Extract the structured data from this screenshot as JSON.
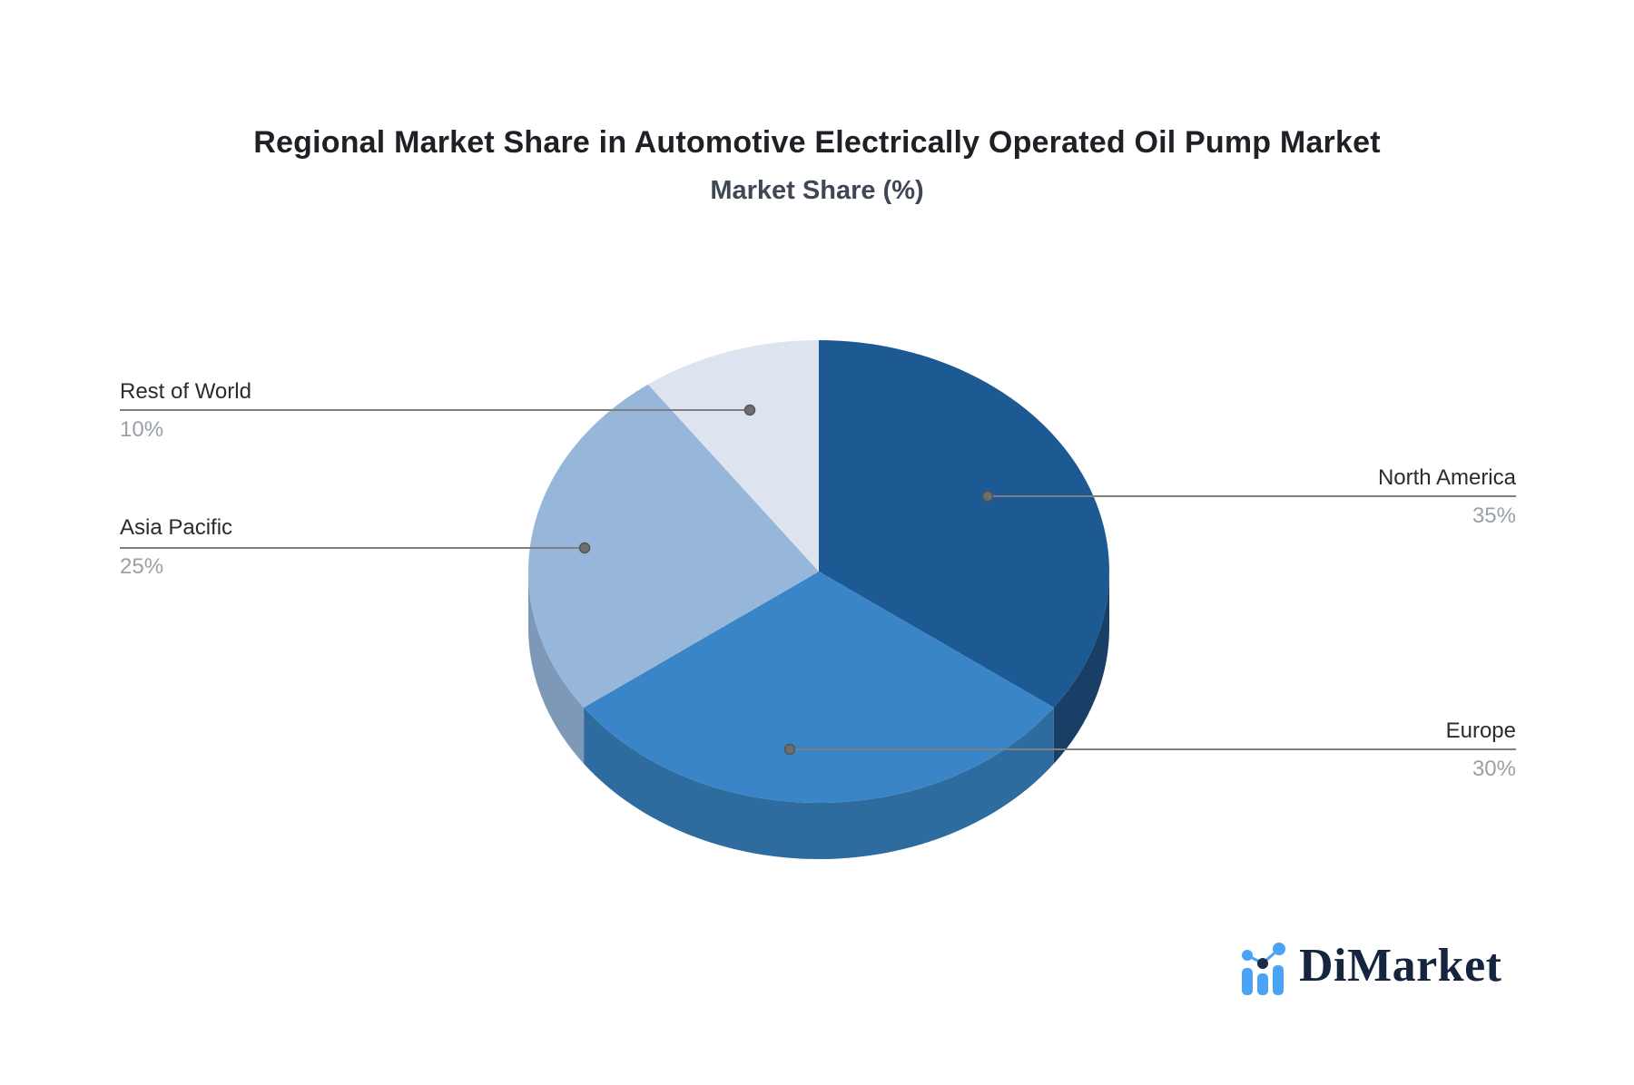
{
  "chart_data": {
    "type": "pie",
    "style": "3d-exploded-none",
    "title": "Regional Market Share in Automotive Electrically Operated Oil Pump Market",
    "subtitle": "Market Share (%)",
    "unit": "%",
    "direction": "clockwise",
    "start_angle_deg": 0,
    "legend_position": "callout-labels",
    "slices": [
      {
        "label": "North America",
        "value": 35,
        "display": "35%",
        "color": "#1d5a94",
        "side_color": "#193f66",
        "callout_side": "right"
      },
      {
        "label": "Europe",
        "value": 30,
        "display": "30%",
        "color": "#3a85c8",
        "side_color": "#2e6b9e",
        "callout_side": "right"
      },
      {
        "label": "Asia Pacific",
        "value": 25,
        "display": "25%",
        "color": "#96b6da",
        "side_color": "#7e99b8",
        "callout_side": "left"
      },
      {
        "label": "Rest of World",
        "value": 10,
        "display": "10%",
        "color": "#dde4ef",
        "side_color": "#c3cede",
        "callout_side": "left"
      }
    ],
    "colors": {
      "background": "#ffffff",
      "title": "#1d2025",
      "subtitle": "#3f4754",
      "label_text": "#2a2c30",
      "percent_text": "#9aa0a7",
      "leader_line": "#7f7f7f",
      "leader_dot": "#6e6e6e"
    }
  },
  "branding": {
    "logo_text": "DiMarket",
    "logo_icon": "bar-line-chart-icon",
    "logo_bar_color": "#4aa3f5",
    "logo_text_color": "#16253f"
  }
}
